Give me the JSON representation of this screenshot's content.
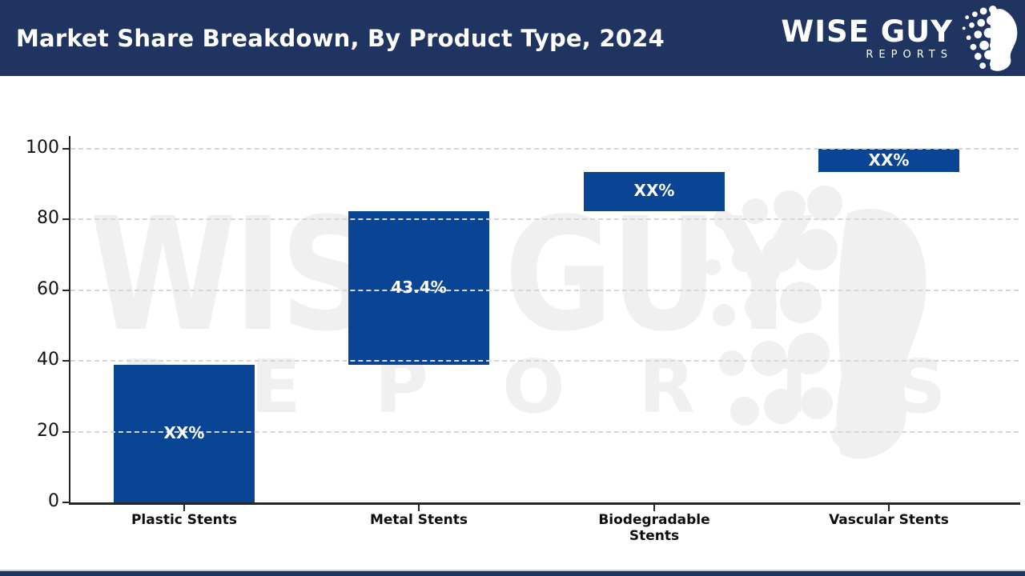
{
  "header": {
    "title": "Market Share Breakdown, By Product Type, 2024",
    "logo_line1": "WISE GUY",
    "logo_line2": "REPORTS"
  },
  "watermark": {
    "line1": "WISE GUY",
    "line2": "R E P O R T S"
  },
  "colors": {
    "header_bg": "#1f3461",
    "bar": "#0a4595",
    "bar_label": "#ffffff",
    "grid": "#d7d7d7",
    "axis": "#262626",
    "tick_label": "#111111",
    "watermark": "#f0f0f0"
  },
  "chart_data": {
    "type": "bar",
    "subtype": "stacked-waterfall",
    "title": "Market Share Breakdown, By Product Type, 2024",
    "xlabel": "",
    "ylabel": "",
    "ylim": [
      0,
      100
    ],
    "yticks": [
      0,
      20,
      40,
      60,
      80,
      100
    ],
    "grid": {
      "horizontal": true,
      "style": "dashed",
      "drawn_over_bars": true
    },
    "legend": false,
    "categories": [
      "Plastic Stents",
      "Metal Stents",
      "Biodegradable Stents",
      "Vascular Stents"
    ],
    "segments": [
      {
        "category": "Plastic Stents",
        "start": 0,
        "end": 39,
        "value": 39,
        "label": "XX%"
      },
      {
        "category": "Metal Stents",
        "start": 39,
        "end": 82.4,
        "value": 43.4,
        "label": "43.4%"
      },
      {
        "category": "Biodegradable Stents",
        "start": 82.4,
        "end": 93.4,
        "value": 11,
        "label": "XX%"
      },
      {
        "category": "Vascular Stents",
        "start": 93.4,
        "end": 100,
        "value": 6.6,
        "label": "XX%"
      }
    ]
  }
}
